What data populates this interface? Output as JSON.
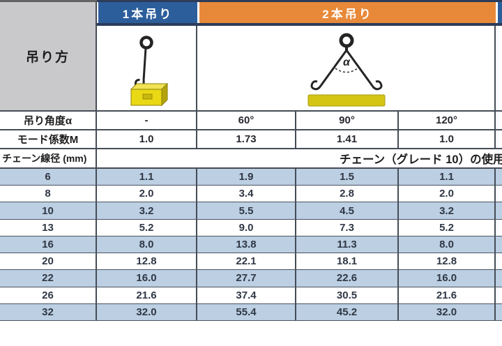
{
  "colors": {
    "header_blue": "#2d5e9c",
    "header_orange": "#e8893a",
    "navy_border": "#2c3c59",
    "grid_border": "#454c56",
    "row_stripe_blue": "#bccfe3",
    "corner_gray": "#c9c9cb",
    "load_yellow": "#e9d814",
    "beam_yellow": "#d3c414"
  },
  "table": {
    "corner_label": "吊り方",
    "column_groups": [
      {
        "label": "1本吊り"
      },
      {
        "label": "2本吊り"
      }
    ],
    "illustrations": {
      "single_name": "single-leg-sling",
      "double_name": "two-leg-sling",
      "alpha_label": "α"
    },
    "angle_row": {
      "label": "吊り角度α",
      "values": [
        "-",
        "60°",
        "90°",
        "120°"
      ]
    },
    "mode_row": {
      "label": "モード係数M",
      "values": [
        "1.0",
        "1.73",
        "1.41",
        "1.0"
      ]
    },
    "diameter_row": {
      "label": "チェーン線径 (mm)",
      "note": "チェーン（グレード 10）の使用"
    },
    "data_rows": [
      {
        "diameter": "6",
        "values": [
          "1.1",
          "1.9",
          "1.5",
          "1.1"
        ]
      },
      {
        "diameter": "8",
        "values": [
          "2.0",
          "3.4",
          "2.8",
          "2.0"
        ]
      },
      {
        "diameter": "10",
        "values": [
          "3.2",
          "5.5",
          "4.5",
          "3.2"
        ]
      },
      {
        "diameter": "13",
        "values": [
          "5.2",
          "9.0",
          "7.3",
          "5.2"
        ]
      },
      {
        "diameter": "16",
        "values": [
          "8.0",
          "13.8",
          "11.3",
          "8.0"
        ]
      },
      {
        "diameter": "20",
        "values": [
          "12.8",
          "22.1",
          "18.1",
          "12.8"
        ]
      },
      {
        "diameter": "22",
        "values": [
          "16.0",
          "27.7",
          "22.6",
          "16.0"
        ]
      },
      {
        "diameter": "26",
        "values": [
          "21.6",
          "37.4",
          "30.5",
          "21.6"
        ]
      },
      {
        "diameter": "32",
        "values": [
          "32.0",
          "55.4",
          "45.2",
          "32.0"
        ]
      }
    ]
  }
}
